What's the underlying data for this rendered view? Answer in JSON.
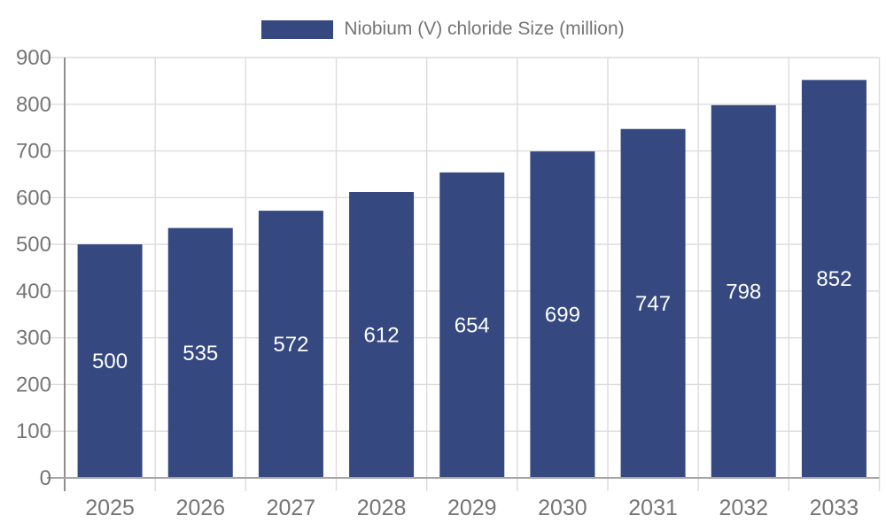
{
  "colors": {
    "bar": "#354880",
    "grid": "#dcdcdc",
    "axis": "#a6a6a6",
    "spine": "#8f8f8f",
    "tick_text": "#757575",
    "value_text": "#ffffff",
    "background": "#ffffff"
  },
  "chart_data": {
    "type": "bar",
    "legend": "Niobium (V) chloride Size (million)",
    "title": "",
    "xlabel": "",
    "ylabel": "",
    "categories": [
      "2025",
      "2026",
      "2027",
      "2028",
      "2029",
      "2030",
      "2031",
      "2032",
      "2033"
    ],
    "values": [
      500,
      535,
      572,
      612,
      654,
      699,
      747,
      798,
      852
    ],
    "ylim": [
      0,
      900
    ],
    "ytick_step": 100,
    "yticks": [
      "0",
      "100",
      "200",
      "300",
      "400",
      "500",
      "600",
      "700",
      "800",
      "900"
    ],
    "grid": true,
    "legend_position": "top-center",
    "value_labels": "inside-center"
  }
}
